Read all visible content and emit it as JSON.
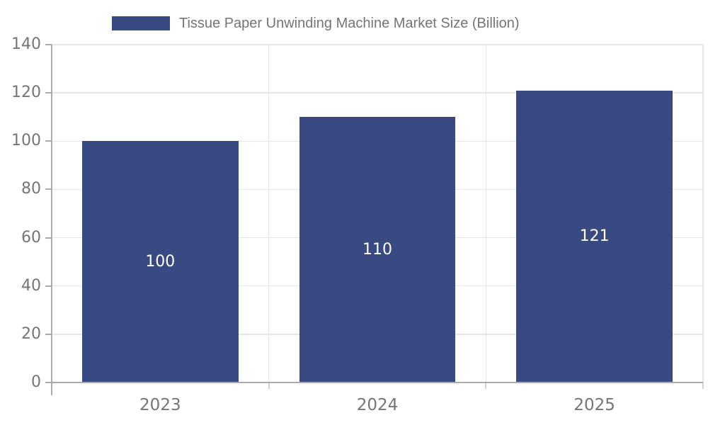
{
  "legend": {
    "label": "Tissue Paper Unwinding Machine Market Size (Billion)"
  },
  "colors": {
    "bar": "#394A82",
    "grid": "#E6E6E6",
    "axis": "#ABABAB",
    "x_minor_tick": "#D2D2D6",
    "tick_text": "#757575",
    "legend_text": "#757575",
    "bar_label_text": "#FFFFFF",
    "background": "#FFFFFF"
  },
  "chart_data": {
    "type": "bar",
    "title": "Tissue Paper Unwinding Machine Market Size (Billion)",
    "categories": [
      "2023",
      "2024",
      "2025"
    ],
    "values": [
      100,
      110,
      121
    ],
    "data_labels": [
      "100",
      "110",
      "121"
    ],
    "data_label_position": "inside-center",
    "xlabel": "",
    "ylabel": "",
    "ylim": [
      0,
      140
    ],
    "yticks": [
      0,
      20,
      40,
      60,
      80,
      100,
      120,
      140
    ],
    "grid": true,
    "legend_position": "top-center",
    "bar_width_fraction": 0.72
  }
}
